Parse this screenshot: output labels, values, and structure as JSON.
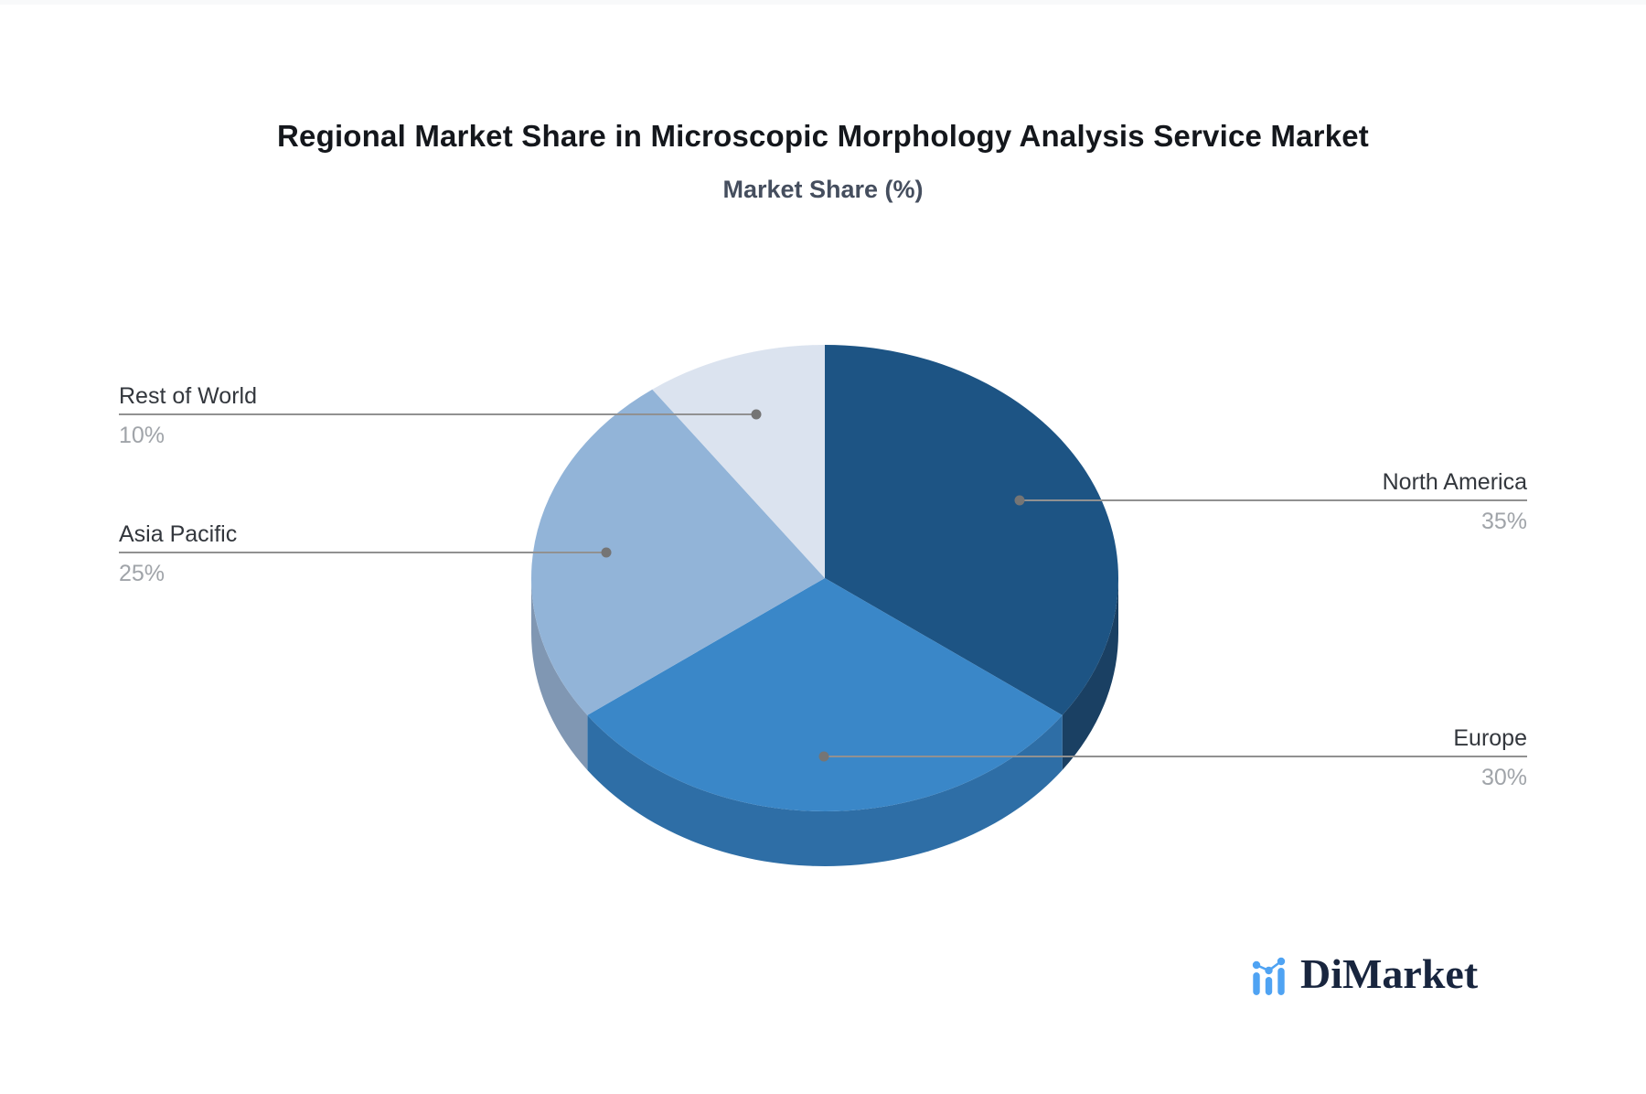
{
  "header": {
    "title": "Regional Market Share in Microscopic Morphology Analysis Service Market",
    "subtitle": "Market Share (%)"
  },
  "chart_data": {
    "type": "pie",
    "style": "3d-pie",
    "title": "Regional Market Share in Microscopic Morphology Analysis Service Market",
    "subtitle": "Market Share (%)",
    "unit": "%",
    "start_angle": "12-o-clock",
    "direction": "clockwise",
    "legend_position": "callout-labels",
    "labels": [
      "North America",
      "Europe",
      "Asia Pacific",
      "Rest of World"
    ],
    "values": [
      35,
      30,
      25,
      10
    ],
    "display_values": [
      "35%",
      "30%",
      "25%",
      "10%"
    ],
    "colors": [
      "#1D5484",
      "#3A87C8",
      "#92B4D8",
      "#DBE3EF"
    ],
    "side_colors": [
      "#1A4063",
      "#2E6EA6",
      "#8097B3",
      "#C8D2E2"
    ],
    "callout_line_color": "#919191",
    "callout_dot_color": "#757575",
    "label_color": "#33373D",
    "value_color": "#A0A4A9"
  },
  "watermark": {
    "brand": "DiMarket",
    "icon": "bar-chart-logo-icon",
    "icon_color": "#4FA3F3",
    "text_color": "#18253E"
  }
}
